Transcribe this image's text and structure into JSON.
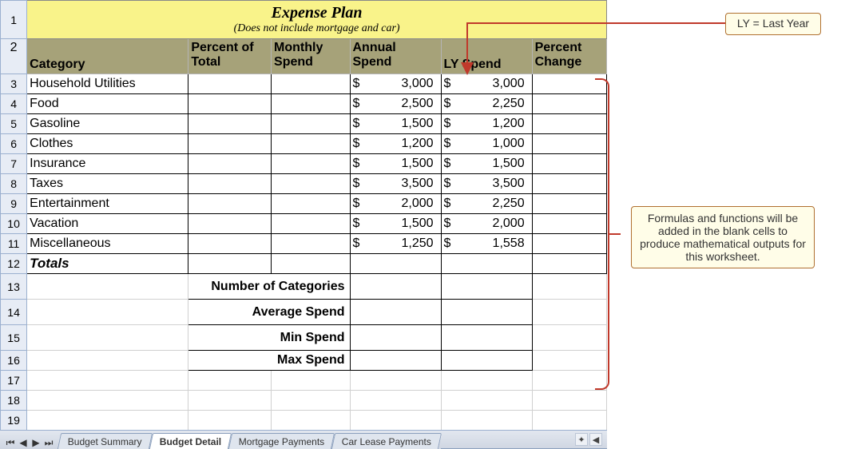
{
  "title": "Expense Plan",
  "subtitle": "(Does not include mortgage and car)",
  "headers": {
    "category": "Category",
    "percent_total": "Percent of Total",
    "monthly_spend": "Monthly Spend",
    "annual_spend": "Annual Spend",
    "ly_spend": "LY Spend",
    "percent_change": "Percent Change"
  },
  "rows": [
    {
      "n": "3",
      "cat": "Household Utilities",
      "annual": "3,000",
      "ly": "3,000"
    },
    {
      "n": "4",
      "cat": "Food",
      "annual": "2,500",
      "ly": "2,250"
    },
    {
      "n": "5",
      "cat": "Gasoline",
      "annual": "1,500",
      "ly": "1,200"
    },
    {
      "n": "6",
      "cat": "Clothes",
      "annual": "1,200",
      "ly": "1,000"
    },
    {
      "n": "7",
      "cat": "Insurance",
      "annual": "1,500",
      "ly": "1,500"
    },
    {
      "n": "8",
      "cat": "Taxes",
      "annual": "3,500",
      "ly": "3,500"
    },
    {
      "n": "9",
      "cat": "Entertainment",
      "annual": "2,000",
      "ly": "2,250"
    },
    {
      "n": "10",
      "cat": "Vacation",
      "annual": "1,500",
      "ly": "2,000"
    },
    {
      "n": "11",
      "cat": "Miscellaneous",
      "annual": "1,250",
      "ly": "1,558"
    }
  ],
  "totals_label": "Totals",
  "stats": {
    "num_cat": "Number of Categories",
    "avg": "Average Spend",
    "min": "Min Spend",
    "max": "Max Spend"
  },
  "empty_rows": [
    "17",
    "18",
    "19"
  ],
  "callouts": {
    "ly": "LY = Last Year",
    "formulas": "Formulas and functions will be added in the blank cells to produce mathematical outputs for this worksheet."
  },
  "tabs": {
    "items": [
      "Budget Summary",
      "Budget Detail",
      "Mortgage Payments",
      "Car Lease Payments"
    ],
    "active_index": 1
  },
  "colors": {
    "title_bg": "#f9f38a",
    "header_bg": "#a6a279",
    "rowhead_bg": "#e7ecf5",
    "callout_bg": "#fffde8",
    "callout_border": "#b07030",
    "bracket": "#c0392b",
    "arrow": "#c0392b",
    "grid": "#b5b5b5"
  }
}
